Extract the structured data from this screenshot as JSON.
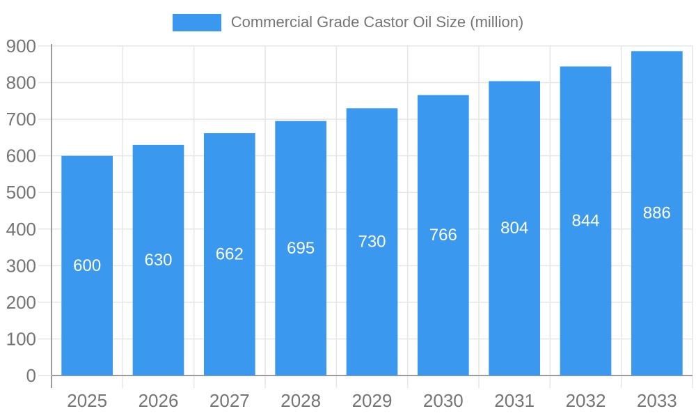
{
  "chart_data": {
    "type": "bar",
    "title": "Commercial Grade Castor Oil Size (million)",
    "legend_position": "top",
    "categories": [
      "2025",
      "2026",
      "2027",
      "2028",
      "2029",
      "2030",
      "2031",
      "2032",
      "2033"
    ],
    "values": [
      600,
      630,
      662,
      695,
      730,
      766,
      804,
      844,
      886
    ],
    "xlabel": "",
    "ylabel": "",
    "ylim": [
      0,
      900
    ],
    "ytick_step": 100,
    "yticks": [
      0,
      100,
      200,
      300,
      400,
      500,
      600,
      700,
      800,
      900
    ],
    "grid": true,
    "colors": {
      "bar": "#3a99ee",
      "value_label": "#ffffff",
      "axis_text": "#757575",
      "grid_line": "#e6e6e6",
      "axis_line": "#9b9b9b"
    }
  }
}
